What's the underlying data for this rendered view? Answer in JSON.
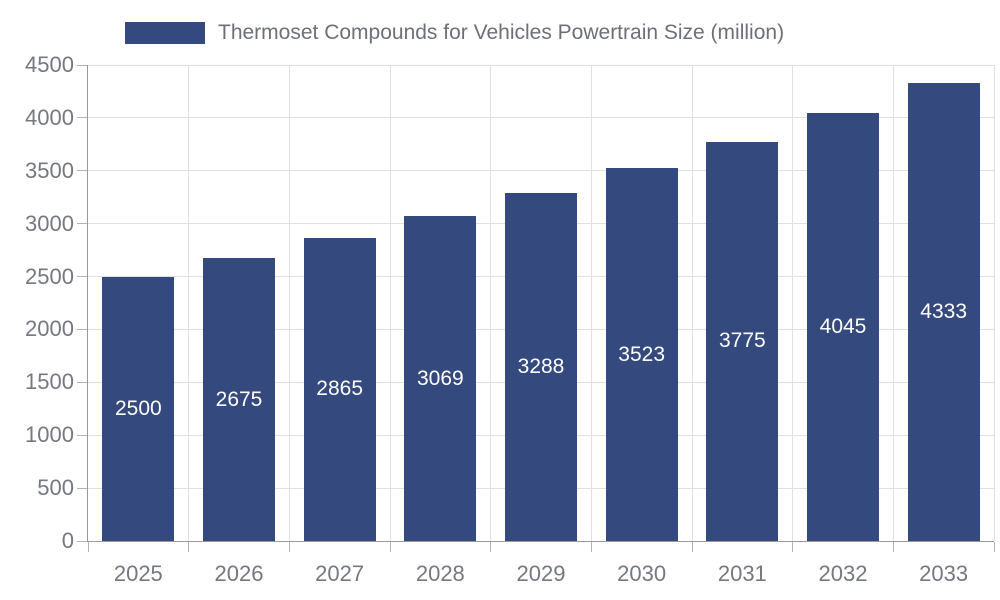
{
  "chart_data": {
    "type": "bar",
    "title": "Thermoset Compounds for Vehicles Powertrain Size (million)",
    "series_name": "Thermoset Compounds for Vehicles Powertrain Size (million)",
    "categories": [
      "2025",
      "2026",
      "2027",
      "2028",
      "2029",
      "2030",
      "2031",
      "2032",
      "2033"
    ],
    "values": [
      2500,
      2675,
      2865,
      3069,
      3288,
      3523,
      3775,
      4045,
      4333
    ],
    "xlabel": "",
    "ylabel": "",
    "ylim": [
      0,
      4500
    ],
    "ytick_step": 500,
    "grid": true,
    "legend_position": "top-left",
    "value_labels": "inside-center"
  },
  "colors": {
    "bar": "#34497e",
    "bar_value_text": "#ffffff",
    "axis_text": "#757880",
    "legend_text": "#6e7079",
    "grid_line": "#e0e0e0",
    "axis_line": "#999999",
    "tick_line": "#b3b3b3",
    "background": "#ffffff"
  }
}
